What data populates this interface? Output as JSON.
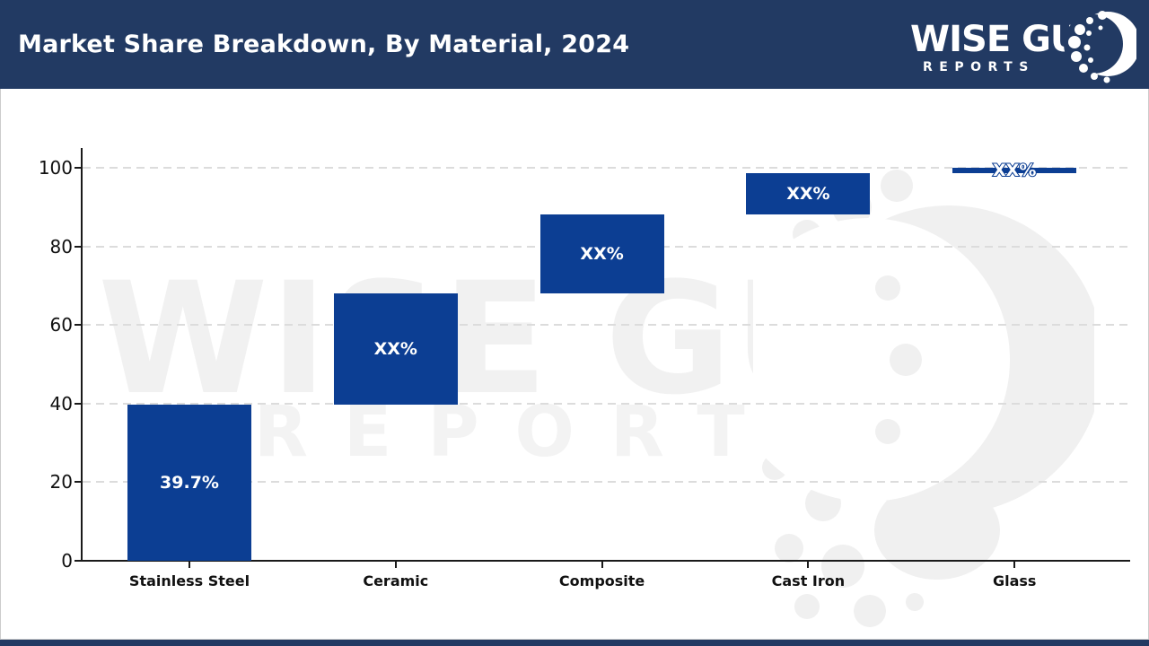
{
  "header": {
    "title": "Market Share Breakdown, By Material, 2024",
    "bg_color": "#223A63",
    "logo": {
      "line1": "WISE GUY",
      "line2": "REPORTS",
      "icon": "dotted-head-profile"
    }
  },
  "watermark": {
    "line1": "WISE GUY",
    "line2": "REPORTS",
    "icon": "dotted-head-profile",
    "color": "#f1f1f1"
  },
  "footer": {
    "bg_color": "#223A63"
  },
  "chart_data": {
    "type": "bar",
    "subtype": "waterfall",
    "title": "Market Share Breakdown, By Material, 2024",
    "categories": [
      "Stainless Steel",
      "Ceramic",
      "Composite",
      "Cast Iron",
      "Glass"
    ],
    "segments": [
      {
        "category": "Stainless Steel",
        "start": 0,
        "end": 39.7,
        "value": 39.7,
        "label": "39.7%"
      },
      {
        "category": "Ceramic",
        "start": 39.7,
        "end": 68.0,
        "value": 28.3,
        "label": "XX%"
      },
      {
        "category": "Composite",
        "start": 68.0,
        "end": 88.1,
        "value": 20.1,
        "label": "XX%"
      },
      {
        "category": "Cast Iron",
        "start": 88.1,
        "end": 98.6,
        "value": 10.5,
        "label": "XX%"
      },
      {
        "category": "Glass",
        "start": 98.6,
        "end": 100.0,
        "value": 1.4,
        "label": "XX%"
      }
    ],
    "bar_color": "#0C3E93",
    "label_color_on_bar": "#ffffff",
    "xlabel": "",
    "ylabel": "",
    "ylim": [
      0,
      107
    ],
    "yticks": [
      0,
      20,
      40,
      60,
      80,
      100
    ],
    "grid": "horizontal-dashed",
    "legend": "none"
  }
}
